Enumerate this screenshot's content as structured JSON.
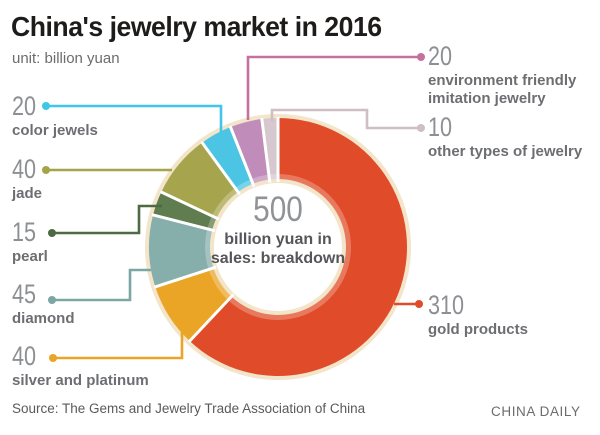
{
  "title": "China's jewelry market in 2016",
  "unit_label": "unit: billion yuan",
  "source": "Source: The Gems and Jewelry Trade Association of China",
  "brand": "CHINA DAILY",
  "center": {
    "total": "500",
    "line1": "billion yuan in",
    "line2": "sales: breakdown"
  },
  "chart_data": {
    "type": "pie",
    "variant": "donut",
    "title": "China's jewelry market in 2016",
    "unit": "billion yuan",
    "total": 500,
    "center_label": "500 billion yuan in sales: breakdown",
    "start_angle_deg": 0,
    "direction": "clockwise",
    "legend_position": "callouts-both-sides",
    "ring_color": "#f3e5c9",
    "gap_color": "#ffffff",
    "segments": [
      {
        "label": "gold products",
        "value": 310,
        "color": "#e04c2a",
        "line_color": "#e04c2a"
      },
      {
        "label": "silver and platinum",
        "value": 40,
        "color": "#eaa426",
        "line_color": "#eaa426"
      },
      {
        "label": "diamond",
        "value": 45,
        "color": "#86aeaa",
        "line_color": "#7aa7a3"
      },
      {
        "label": "pearl",
        "value": 15,
        "color": "#5f7d4e",
        "line_color": "#4c6b42"
      },
      {
        "label": "jade",
        "value": 40,
        "color": "#a6a54d",
        "line_color": "#a5a44b"
      },
      {
        "label": "color jewels",
        "value": 20,
        "color": "#4cc4e4",
        "line_color": "#3fc6e8"
      },
      {
        "label": "environment friendly imitation jewelry",
        "value": 20,
        "color": "#c08cba",
        "line_color": "#c4719e"
      },
      {
        "label": "other types of jewelry",
        "value": 10,
        "color": "#d6c8ce",
        "line_color": "#cfbfc5"
      }
    ]
  }
}
